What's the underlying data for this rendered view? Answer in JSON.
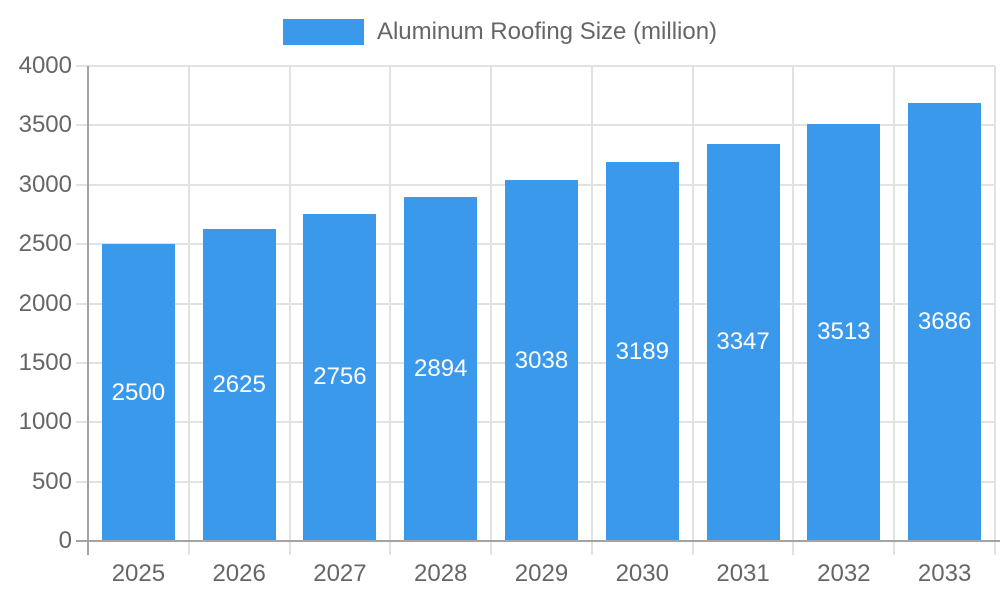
{
  "colors": {
    "bar": "#3B99EC",
    "bar_label": "#FFFFFF",
    "text": "#666666",
    "grid": "#E2E2E2",
    "axis": "#A3A3A3",
    "background": "#FFFFFF"
  },
  "legend": {
    "label": "Aluminum Roofing Size (million)"
  },
  "chart_data": {
    "type": "bar",
    "categories": [
      "2025",
      "2026",
      "2027",
      "2028",
      "2029",
      "2030",
      "2031",
      "2032",
      "2033"
    ],
    "series": [
      {
        "name": "Aluminum Roofing Size (million)",
        "values": [
          2500,
          2625,
          2756,
          2894,
          3038,
          3189,
          3347,
          3513,
          3686
        ]
      }
    ],
    "yticks": [
      "0",
      "500",
      "1000",
      "1500",
      "2000",
      "2500",
      "3000",
      "3500",
      "4000"
    ],
    "ylim": [
      0,
      4000
    ],
    "ytick_step": 500,
    "xlabel": "",
    "ylabel": "",
    "grid": true,
    "legend_position": "top",
    "value_labels": "inside-center"
  }
}
